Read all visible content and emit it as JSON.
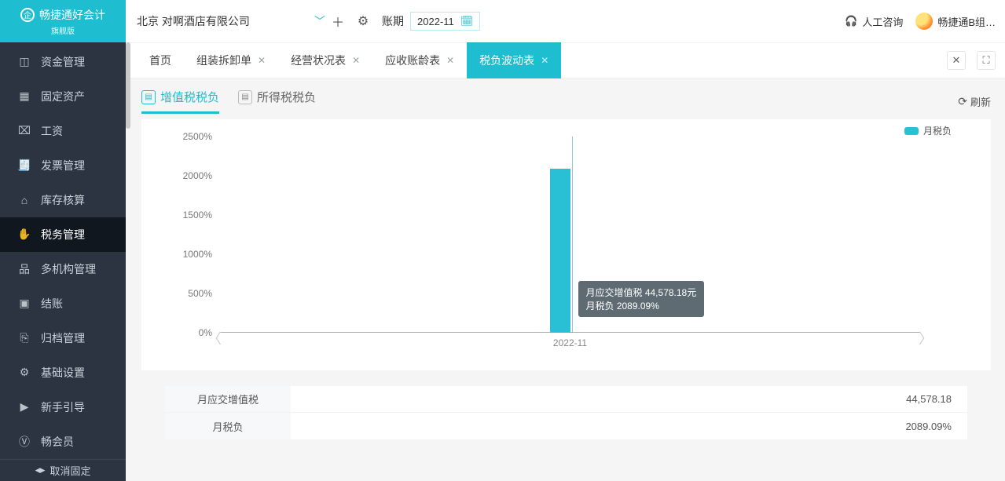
{
  "brand": {
    "name": "畅捷通好会计",
    "edition": "旗舰版"
  },
  "company": {
    "name": "北京 对啊酒店有限公司"
  },
  "period": {
    "label": "账期",
    "value": "2022-11"
  },
  "header": {
    "support_label": "人工咨询",
    "user_label": "畅捷通B组…"
  },
  "sidebar": {
    "items": [
      {
        "icon": "◫",
        "label": "资金管理"
      },
      {
        "icon": "▦",
        "label": "固定资产"
      },
      {
        "icon": "⌧",
        "label": "工资"
      },
      {
        "icon": "🧾",
        "label": "发票管理"
      },
      {
        "icon": "⌂",
        "label": "库存核算"
      },
      {
        "icon": "✋",
        "label": "税务管理"
      },
      {
        "icon": "品",
        "label": "多机构管理"
      },
      {
        "icon": "▣",
        "label": "结账"
      },
      {
        "icon": "⎘",
        "label": "归档管理"
      },
      {
        "icon": "⚙",
        "label": "基础设置"
      },
      {
        "icon": "▶",
        "label": "新手引导"
      },
      {
        "icon": "Ⓥ",
        "label": "畅会员"
      }
    ],
    "active_index": 5,
    "cancel_label": "取消固定"
  },
  "tabs": {
    "items": [
      {
        "label": "首页",
        "closable": false
      },
      {
        "label": "组装拆卸单",
        "closable": true
      },
      {
        "label": "经营状况表",
        "closable": true
      },
      {
        "label": "应收账龄表",
        "closable": true
      },
      {
        "label": "税负波动表",
        "closable": true
      }
    ],
    "active_index": 4
  },
  "subtabs": {
    "items": [
      {
        "label": "增值税税负"
      },
      {
        "label": "所得税税负"
      }
    ],
    "active_index": 0,
    "refresh_label": "刷新"
  },
  "chart": {
    "type": "bar",
    "legend_label": "月税负",
    "legend_color": "#29c0d6",
    "x_category": "2022-11",
    "bar_value_pct": 2089.09,
    "bar_color": "#29c0d6",
    "ylim_max": 2500,
    "yticks": [
      0,
      500,
      1000,
      1500,
      2000,
      2500
    ],
    "vline_top_pct": 2500,
    "vline_color": "#4aa0b5",
    "tooltip_line1": "月应交增值税 44,578.18元",
    "tooltip_line2": "月税负 2089.09%"
  },
  "summary": {
    "rows": [
      {
        "label": "月应交增值税",
        "value": "44,578.18"
      },
      {
        "label": "月税负",
        "value": "2089.09%"
      }
    ]
  }
}
